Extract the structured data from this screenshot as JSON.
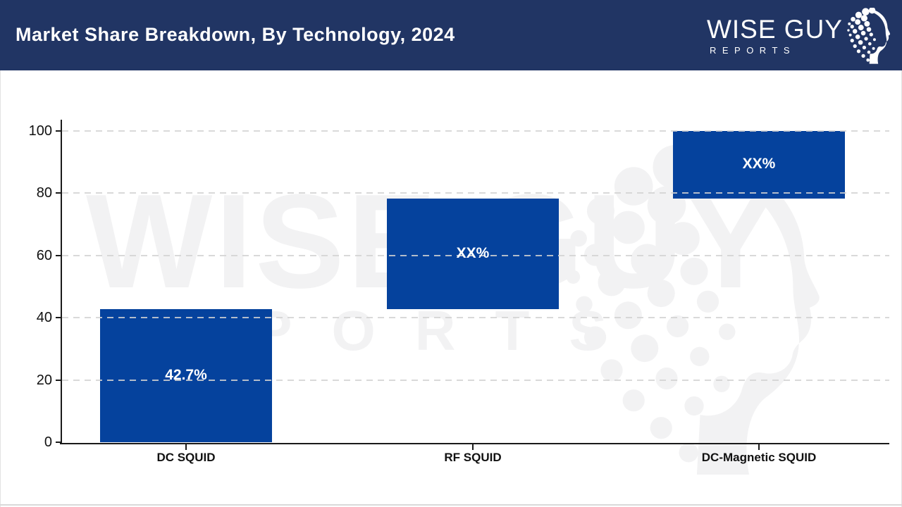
{
  "header": {
    "title": "Market Share Breakdown, By Technology, 2024",
    "logo": {
      "line1": "WISE GUY",
      "line2": "REPORTS"
    }
  },
  "watermark": {
    "line1": "WISE GUY",
    "line2": "REPORTS"
  },
  "chart_data": {
    "type": "bar",
    "variant": "waterfall",
    "title": "Market Share Breakdown, By Technology, 2024",
    "categories": [
      "DC SQUID",
      "RF SQUID",
      "DC-Magnetic SQUID"
    ],
    "segments": [
      {
        "category": "DC SQUID",
        "start": 0,
        "end": 42.7,
        "label": "42.7%"
      },
      {
        "category": "RF SQUID",
        "start": 42.7,
        "end": 78.2,
        "label": "XX%"
      },
      {
        "category": "DC-Magnetic SQUID",
        "start": 78.2,
        "end": 100,
        "label": "XX%"
      }
    ],
    "xlabel": "",
    "ylabel": "",
    "yticks": [
      0,
      20,
      40,
      60,
      80,
      100
    ],
    "ylim": [
      0,
      104
    ],
    "grid": {
      "axis": "y",
      "style": "dashed",
      "color": "#d2d2d2"
    },
    "legend": "none",
    "bar_color": "#05429d",
    "bar_label_color": "#ffffff"
  },
  "colors": {
    "header_bg": "#213564",
    "bar": "#05429d",
    "axis": "#1a1a1a",
    "watermark": "#f2f2f3"
  }
}
